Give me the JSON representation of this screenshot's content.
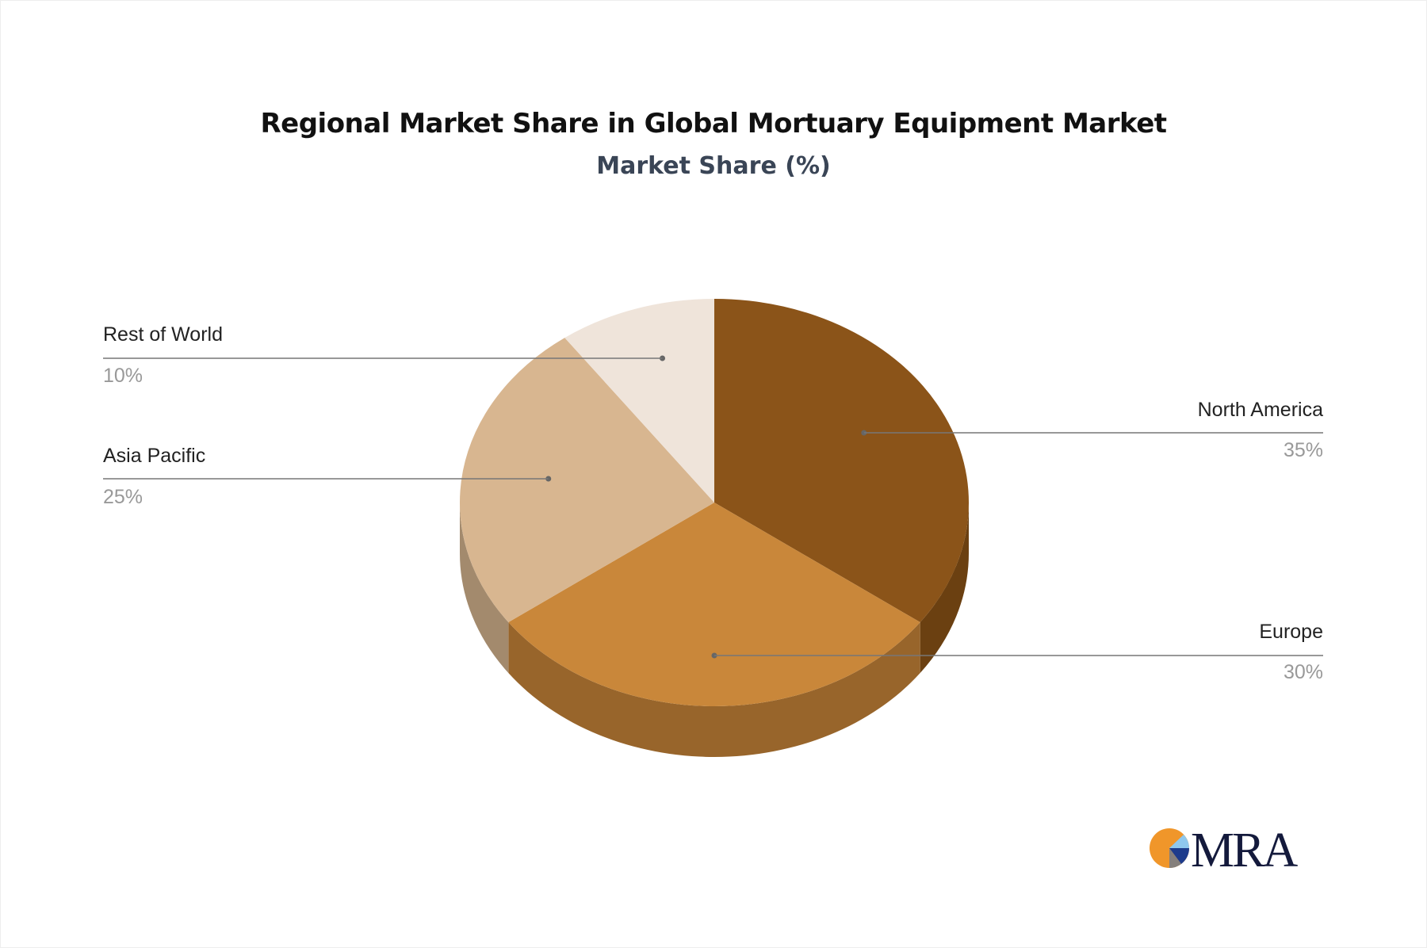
{
  "chart_data": {
    "type": "pie",
    "style": "3d",
    "title": "Regional Market Share in Global Mortuary Equipment Market",
    "subtitle": "Market Share (%)",
    "categories": [
      "North America",
      "Europe",
      "Asia Pacific",
      "Rest of World"
    ],
    "values": [
      35,
      30,
      25,
      10
    ],
    "labels": [
      "35%",
      "30%",
      "25%",
      "10%"
    ],
    "colors": [
      "#8B5419",
      "#C9873A",
      "#D8B690",
      "#EFE4DA"
    ],
    "side_colors": [
      "#6B4011",
      "#98652B",
      "#A38A6D",
      "#C9BFB5"
    ]
  },
  "logo": {
    "text": "MRA"
  }
}
